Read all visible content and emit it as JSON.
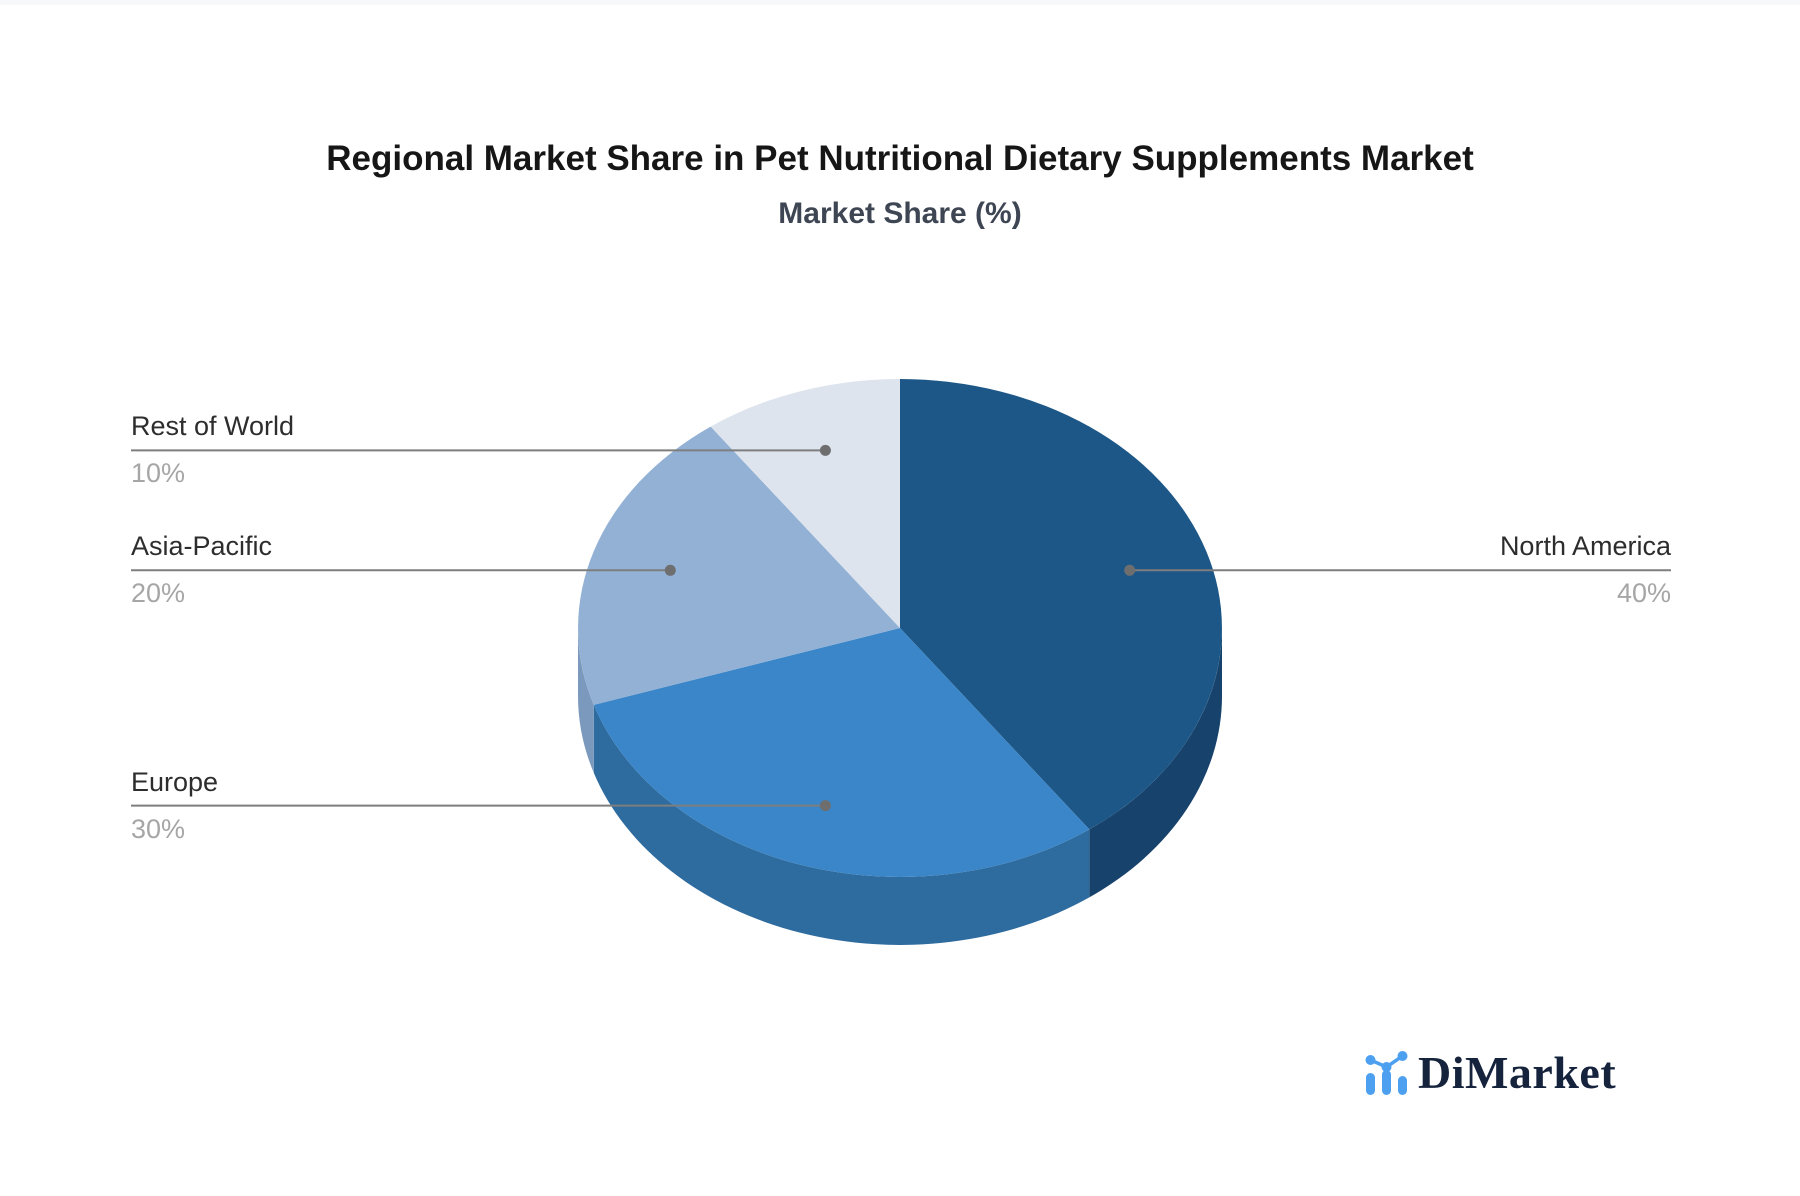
{
  "header": {
    "title": "Regional Market Share in Pet Nutritional Dietary Supplements Market",
    "subtitle": "Market Share (%)"
  },
  "chart_data": {
    "type": "pie",
    "title": "Regional Market Share in Pet Nutritional Dietary Supplements Market",
    "subtitle": "Market Share (%)",
    "unit": "%",
    "effect": "3d",
    "start_angle_deg": 0,
    "direction": "clockwise",
    "legend": "none",
    "labels_style": "callouts-with-leader-lines",
    "slices": [
      {
        "label": "North America",
        "value": 40,
        "display": "40%",
        "color": "#1d5787",
        "side_color": "#17426b",
        "callout_side": "right"
      },
      {
        "label": "Europe",
        "value": 30,
        "display": "30%",
        "color": "#3a86c8",
        "side_color": "#2e6b9e",
        "callout_side": "left"
      },
      {
        "label": "Asia-Pacific",
        "value": 20,
        "display": "20%",
        "color": "#92b1d5",
        "side_color": "#7b99bd",
        "callout_side": "left"
      },
      {
        "label": "Rest of World",
        "value": 10,
        "display": "10%",
        "color": "#dde4ee",
        "side_color": "#c3cede",
        "callout_side": "left"
      }
    ],
    "leader_line_color": "#7e7e7e",
    "leader_dot_color": "#6e6e6e",
    "label_text_color": "#2d2d2d",
    "value_text_color": "#a6a6a6"
  },
  "branding": {
    "logo_text": "DiMarket",
    "logo_icon": "bar-chart-trend-icon",
    "logo_text_color": "#16233c",
    "logo_accent_color": "#4da0f0"
  }
}
